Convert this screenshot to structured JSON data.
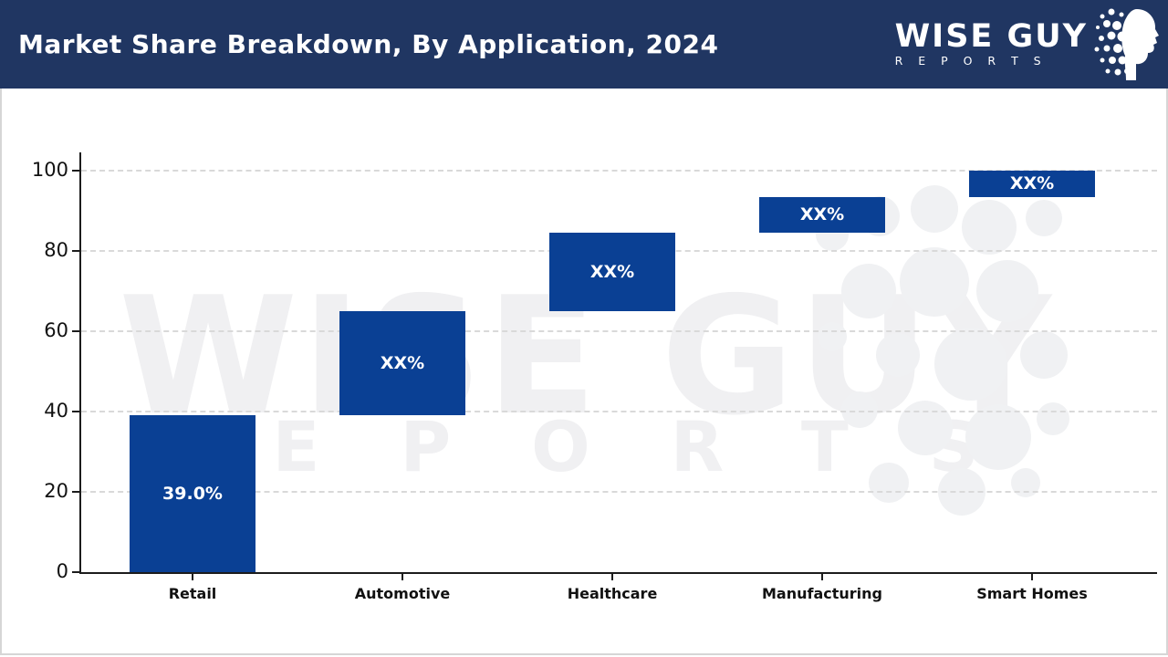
{
  "header": {
    "title": "Market Share Breakdown, By Application, 2024",
    "logo_line1": "WISE GUY",
    "logo_line2": "R E P O R T S"
  },
  "watermark": {
    "line1": "WISE GUY",
    "line2": "REPORTS"
  },
  "colors": {
    "header_bg": "#203662",
    "bar": "#0a4094",
    "axis": "#1c1c1c",
    "grid": "#d9d9d9",
    "watermark": "#f0f0f2",
    "border": "#d6d6d6"
  },
  "chart_data": {
    "type": "bar",
    "variant": "waterfall",
    "title": "Market Share Breakdown, By Application, 2024",
    "categories": [
      "Retail",
      "Automotive",
      "Healthcare",
      "Manufacturing",
      "Smart Homes"
    ],
    "segments": [
      {
        "category": "Retail",
        "start": 0,
        "end": 39,
        "label": "39.0%"
      },
      {
        "category": "Automotive",
        "start": 39,
        "end": 65,
        "label": "XX%"
      },
      {
        "category": "Healthcare",
        "start": 65,
        "end": 84.5,
        "label": "XX%"
      },
      {
        "category": "Manufacturing",
        "start": 84.5,
        "end": 93.5,
        "label": "XX%"
      },
      {
        "category": "Smart Homes",
        "start": 93.5,
        "end": 100,
        "label": "XX%"
      }
    ],
    "xlabel": "",
    "ylabel": "",
    "yticks": [
      0,
      20,
      40,
      60,
      80,
      100
    ],
    "ylim": [
      0,
      105
    ],
    "grid": "horizontal dashed",
    "legend": "none",
    "bar_color": "#0a4094",
    "bar_label_color": "#ffffff"
  }
}
